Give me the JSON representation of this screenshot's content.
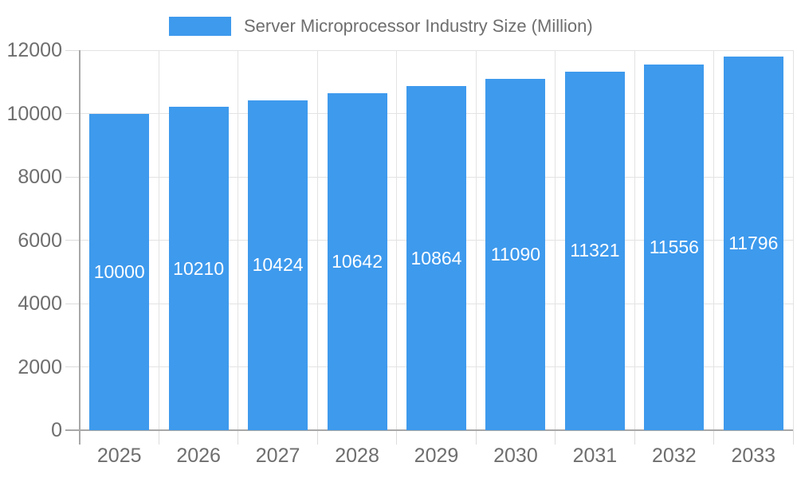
{
  "chart_data": {
    "type": "bar",
    "title": "Server Microprocessor Industry Size (Million)",
    "legend": {
      "label": "Server Microprocessor Industry Size (Million)",
      "position": "top"
    },
    "categories": [
      "2025",
      "2026",
      "2027",
      "2028",
      "2029",
      "2030",
      "2031",
      "2032",
      "2033"
    ],
    "values": [
      10000,
      10210,
      10424,
      10642,
      10864,
      11090,
      11321,
      11556,
      11796
    ],
    "value_labels_shown": true,
    "xlabel": "",
    "ylabel": "",
    "ylim": [
      0,
      12000
    ],
    "y_ticks": [
      0,
      2000,
      4000,
      6000,
      8000,
      10000,
      12000
    ],
    "grid": true,
    "colors": {
      "bar": "#3e9aed",
      "value_label": "#ffffff",
      "axis_text": "#6e6e6e",
      "gridline": "#e3e3e3",
      "tick": "#dcdcdc",
      "axis_line": "#a8a8a8",
      "background": "#ffffff"
    }
  }
}
